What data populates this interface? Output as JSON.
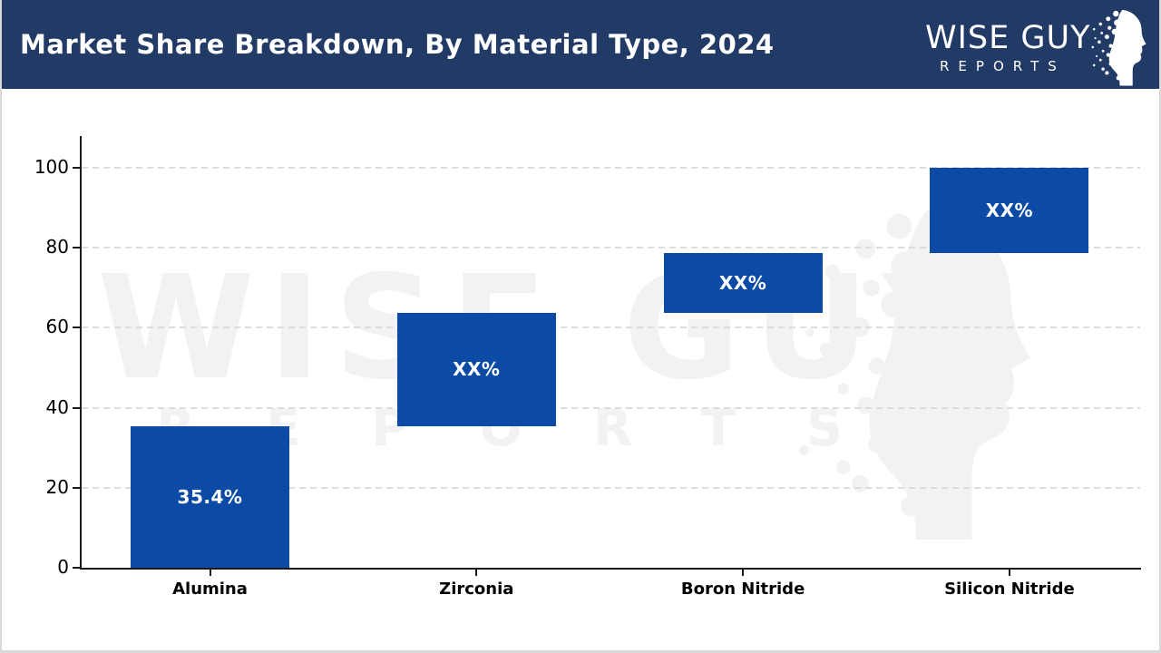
{
  "header": {
    "title": "Market Share Breakdown, By Material Type, 2024",
    "logo_line1": "WISE GUY",
    "logo_line2": "REPORTS",
    "bg_color": "#223A66"
  },
  "watermark": {
    "line1": "WISE GUY",
    "line2": "REPORTS"
  },
  "chart_data": {
    "type": "bar",
    "subtype": "waterfall-stacked-percentage",
    "title": "Market Share Breakdown, By Material Type, 2024",
    "categories": [
      "Alumina",
      "Zirconia",
      "Boron Nitride",
      "Silicon Nitride"
    ],
    "segments": [
      {
        "category": "Alumina",
        "start": 0,
        "end": 35.4,
        "label": "35.4%"
      },
      {
        "category": "Zirconia",
        "start": 35.4,
        "end": 63.7,
        "label": "XX%"
      },
      {
        "category": "Boron Nitride",
        "start": 63.7,
        "end": 78.7,
        "label": "XX%"
      },
      {
        "category": "Silicon Nitride",
        "start": 78.7,
        "end": 100,
        "label": "XX%"
      }
    ],
    "ylim": [
      0,
      108
    ],
    "yticks": [
      0,
      20,
      40,
      60,
      80,
      100
    ],
    "grid": {
      "axis": "y",
      "style": "dashed",
      "color": "#DCDCDC"
    },
    "legend": "none",
    "bar_color": "#0B4BA5",
    "bar_label_color": "#FFFFFF",
    "axis_color": "#000000"
  }
}
